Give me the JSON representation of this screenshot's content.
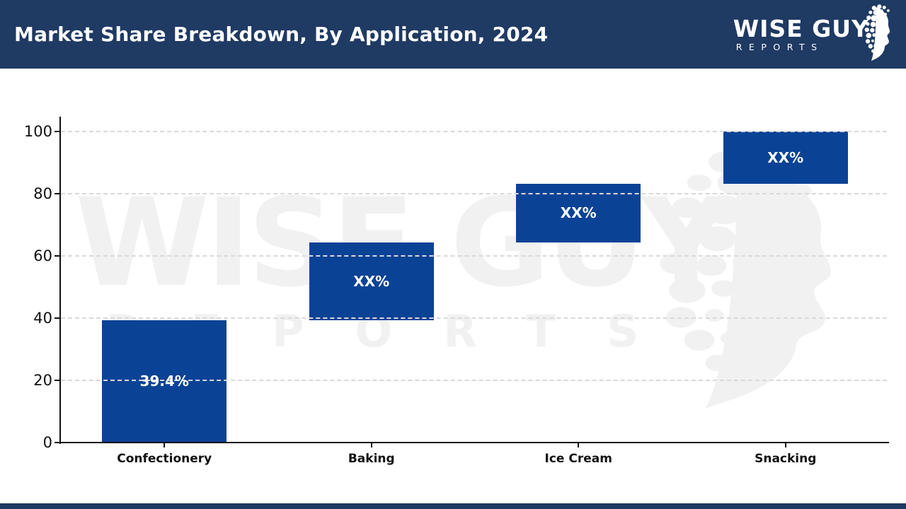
{
  "header": {
    "title": "Market Share Breakdown, By Application, 2024",
    "logo": {
      "line1": "WISE GUY",
      "line2": "REPORTS"
    }
  },
  "watermark": {
    "line1": "WISE GUY",
    "line2": "REPORTS"
  },
  "chart_data": {
    "type": "bar",
    "subtype": "waterfall",
    "title": "Market Share Breakdown, By Application, 2024",
    "categories": [
      "Confectionery",
      "Baking",
      "Ice Cream",
      "Snacking"
    ],
    "segments": [
      {
        "category": "Confectionery",
        "start": 0,
        "end": 39.4,
        "label": "39.4%"
      },
      {
        "category": "Baking",
        "start": 39.4,
        "end": 64.4,
        "label": "XX%"
      },
      {
        "category": "Ice Cream",
        "start": 64.4,
        "end": 83.2,
        "label": "XX%"
      },
      {
        "category": "Snacking",
        "start": 83.2,
        "end": 100,
        "label": "XX%"
      }
    ],
    "ylim": [
      0,
      105
    ],
    "yticks": [
      0,
      20,
      40,
      60,
      80,
      100
    ],
    "grid": {
      "axis": "y",
      "style": "dashed",
      "color": "#d9d9d9"
    },
    "legend_position": "none"
  },
  "colors": {
    "header_bg": "#1f3a63",
    "footer_bg": "#1f3a63",
    "bar": "#0a4296",
    "bar_label": "#ffffff",
    "axis": "#111111",
    "watermark": "#f1f1f1"
  }
}
